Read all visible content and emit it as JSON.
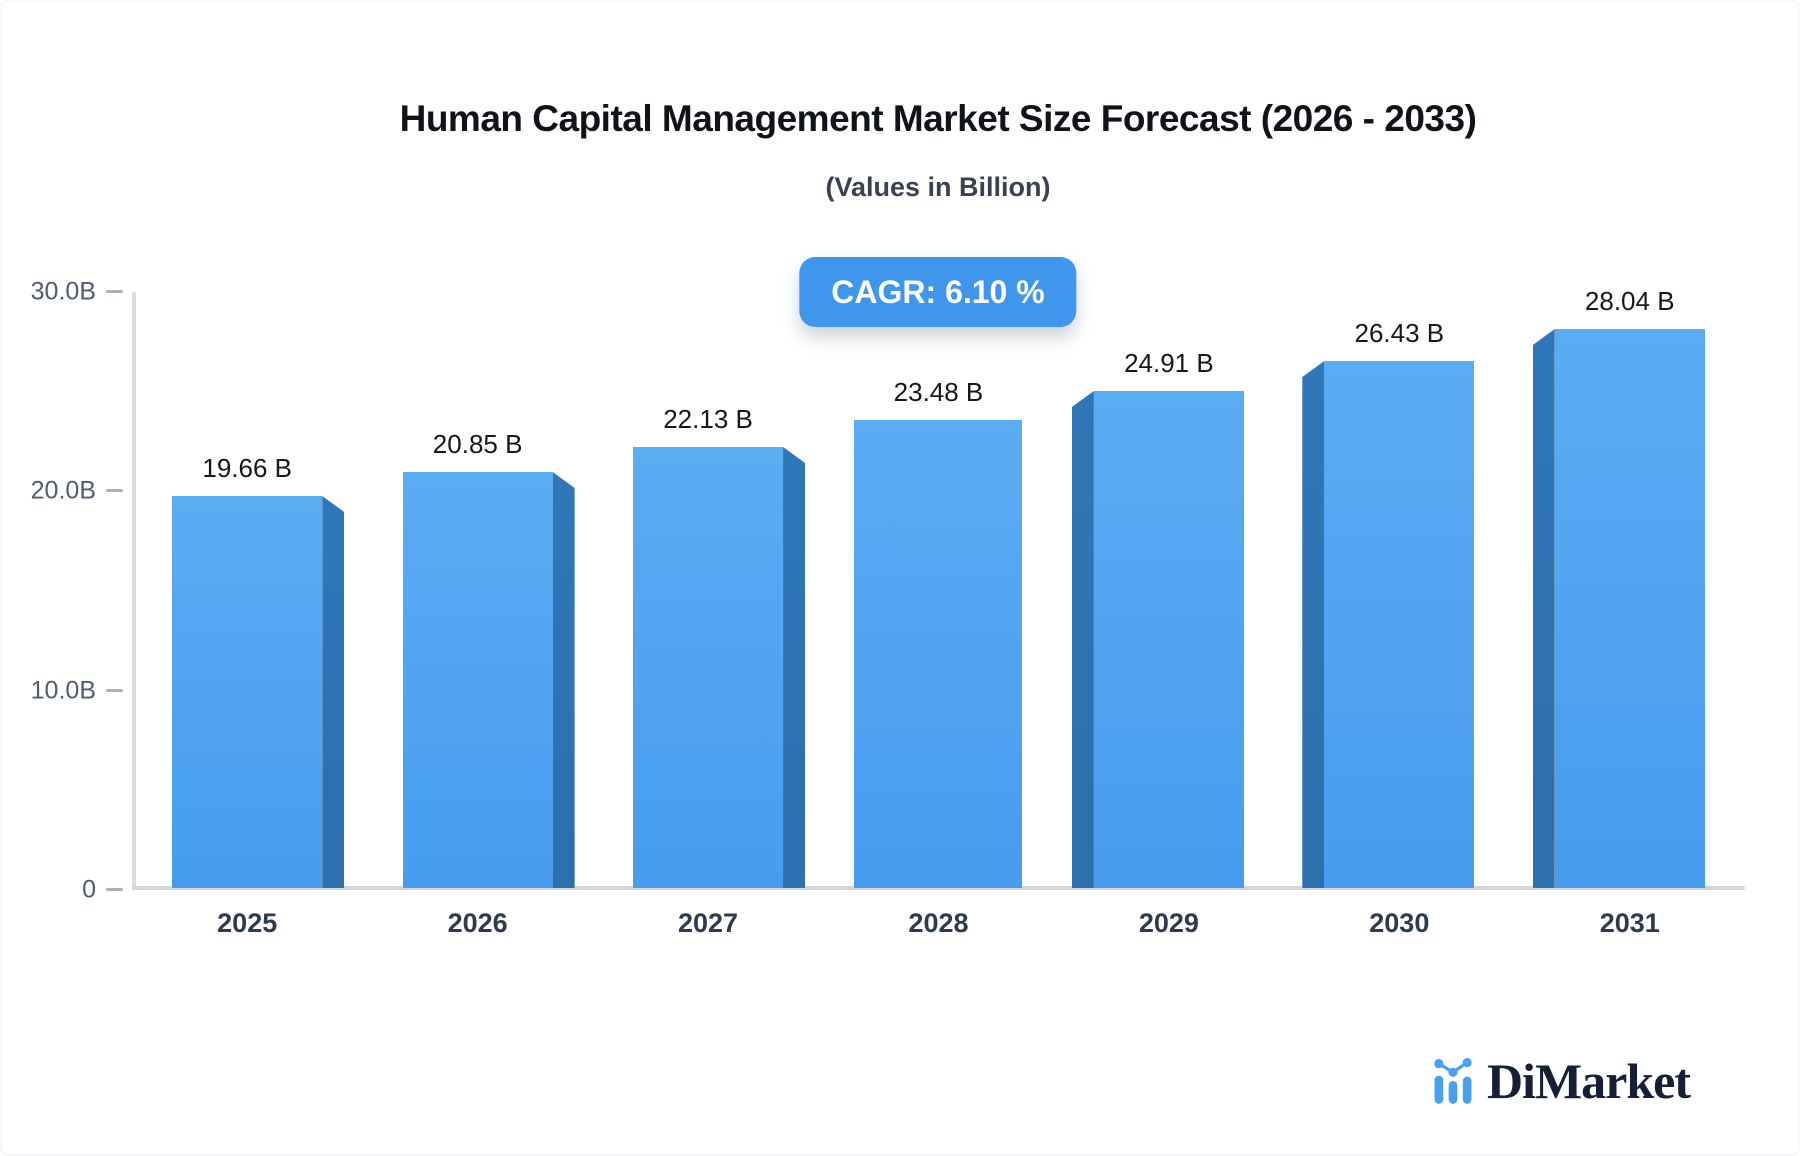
{
  "header": {
    "title": "Human Capital Management Market Size Forecast (2026 - 2033)",
    "subtitle": "(Values in Billion)",
    "cagr_badge": "CAGR: 6.10 %"
  },
  "chart_data": {
    "type": "bar",
    "title": "Human Capital Management Market Size Forecast (2026 - 2033)",
    "subtitle": "(Values in Billion)",
    "categories": [
      "2025",
      "2026",
      "2027",
      "2028",
      "2029",
      "2030",
      "2031"
    ],
    "values": [
      19.66,
      20.85,
      22.13,
      23.48,
      24.91,
      26.43,
      28.04
    ],
    "value_labels": [
      "19.66 B",
      "20.85 B",
      "22.13 B",
      "23.48 B",
      "24.91 B",
      "26.43 B",
      "28.04 B"
    ],
    "annotation": "CAGR: 6.10 %",
    "xlabel": "",
    "ylabel": "",
    "ylim": [
      0,
      30
    ],
    "grid": false,
    "legend": "none",
    "yticks": [
      {
        "label": "30.0B",
        "value": 30
      },
      {
        "label": "20.0B",
        "value": 20
      },
      {
        "label": "10.0B",
        "value": 10
      },
      {
        "label": "0",
        "value": 0
      }
    ],
    "colors": {
      "bar_face_top": "#5aacf3",
      "bar_face_bottom": "#479cef",
      "bar_side": "#2e74b3",
      "badge_background": "#3e97ec",
      "axis_line": "#dbdde1"
    },
    "style_note": "3D beveled bars; bars left of center show darker right side, bars right of center show darker left side, middle bar flat"
  },
  "footer": {
    "logo_text": "DiMarket",
    "logo_icon": "mini-bar-chart-icon"
  }
}
